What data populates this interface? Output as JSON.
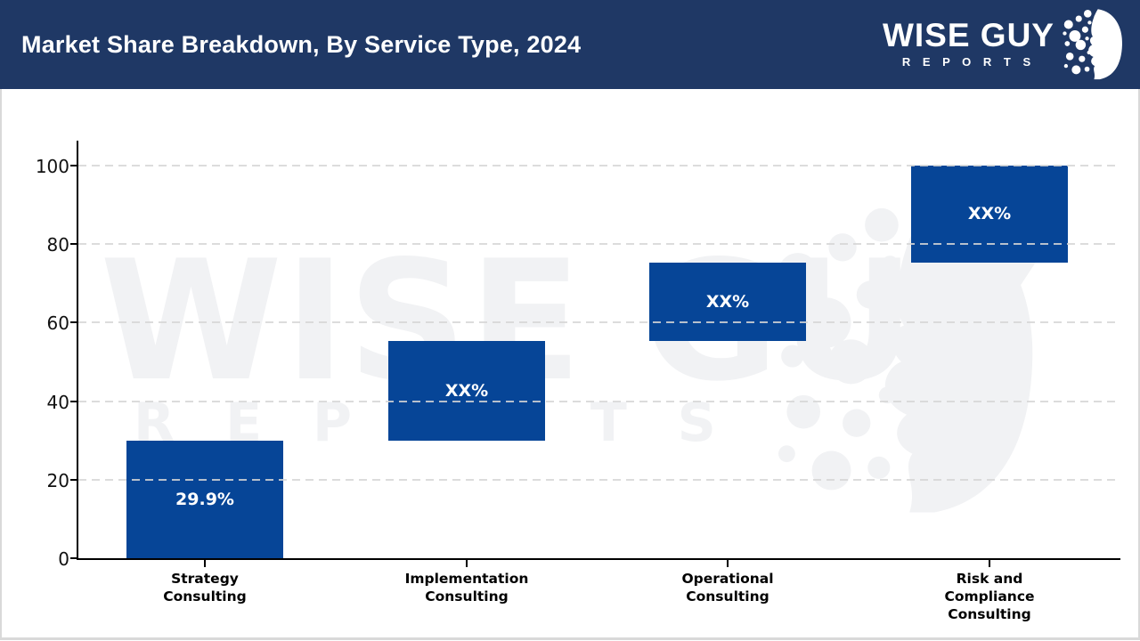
{
  "header": {
    "title": "Market Share Breakdown, By Service Type, 2024",
    "logo": {
      "wise_guy": "WISE GUY",
      "reports": "R E P O R T S"
    }
  },
  "watermark": {
    "wise_guy": "WISE GUY",
    "reports": "R E P O R T S"
  },
  "colors": {
    "header_bg": "#1f3865",
    "bar": "#064597",
    "grid": "#d9d9d9",
    "watermark": "#f1f2f4",
    "label_on_bar": "#ffffff",
    "axis_text": "#111111"
  },
  "chart_data": {
    "type": "bar",
    "subtype": "waterfall",
    "title": "Market Share Breakdown, By Service Type, 2024",
    "categories": [
      "Strategy Consulting",
      "Implementation Consulting",
      "Operational Consulting",
      "Risk and Compliance Consulting"
    ],
    "category_lines": [
      [
        "Strategy",
        "Consulting"
      ],
      [
        "Implementation",
        "Consulting"
      ],
      [
        "Operational",
        "Consulting"
      ],
      [
        "Risk and",
        "Compliance",
        "Consulting"
      ]
    ],
    "segments": [
      [
        0,
        29.9
      ],
      [
        29.9,
        55.4
      ],
      [
        55.4,
        75.3
      ],
      [
        75.3,
        100
      ]
    ],
    "values": [
      29.9,
      25.5,
      19.9,
      24.7
    ],
    "bar_labels": [
      "29.9%",
      "XX%",
      "XX%",
      "XX%"
    ],
    "yticks": [
      0,
      20,
      40,
      60,
      80,
      100
    ],
    "ylim": [
      0,
      100
    ],
    "grid": "dashed-horizontal",
    "legend": "none",
    "xlabel": "",
    "ylabel": ""
  }
}
